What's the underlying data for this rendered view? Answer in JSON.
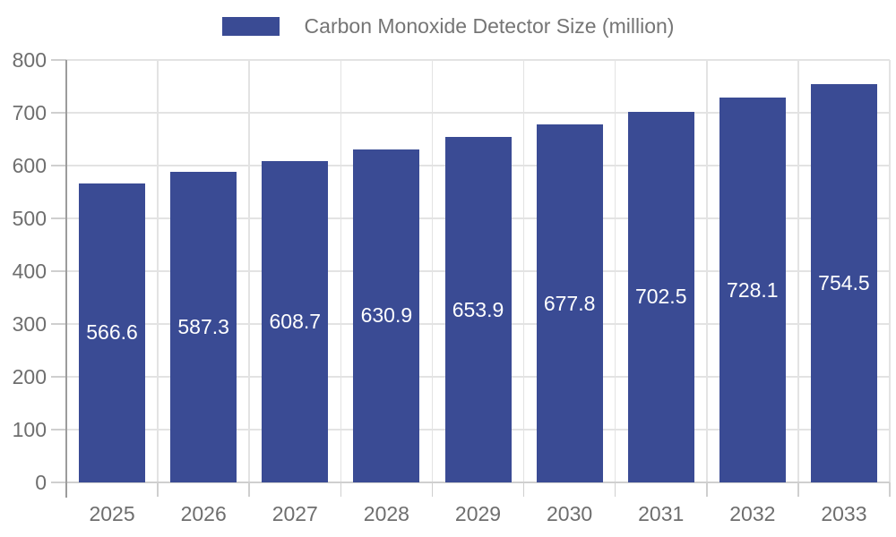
{
  "chart_data": {
    "type": "bar",
    "title": "Carbon Monoxide Detector Size (million)",
    "categories": [
      "2025",
      "2026",
      "2027",
      "2028",
      "2029",
      "2030",
      "2031",
      "2032",
      "2033"
    ],
    "values": [
      566.6,
      587.3,
      608.7,
      630.9,
      653.9,
      677.8,
      702.5,
      728.1,
      754.5
    ],
    "xlabel": "",
    "ylabel": "",
    "ylim": [
      0,
      800
    ],
    "yticks": [
      0,
      100,
      200,
      300,
      400,
      500,
      600,
      700,
      800
    ],
    "grid": true,
    "legend_position": "top",
    "colors": {
      "bar": "#3A4B94",
      "value_label_text": "#FFFFFF",
      "axis_text": "#6E6E6E",
      "legend_text": "#757575",
      "grid_line": "#E3E3E3",
      "axis_line": "#9C9C9C",
      "tick_line": "#CFCFCF",
      "background": "#FFFFFF"
    }
  }
}
